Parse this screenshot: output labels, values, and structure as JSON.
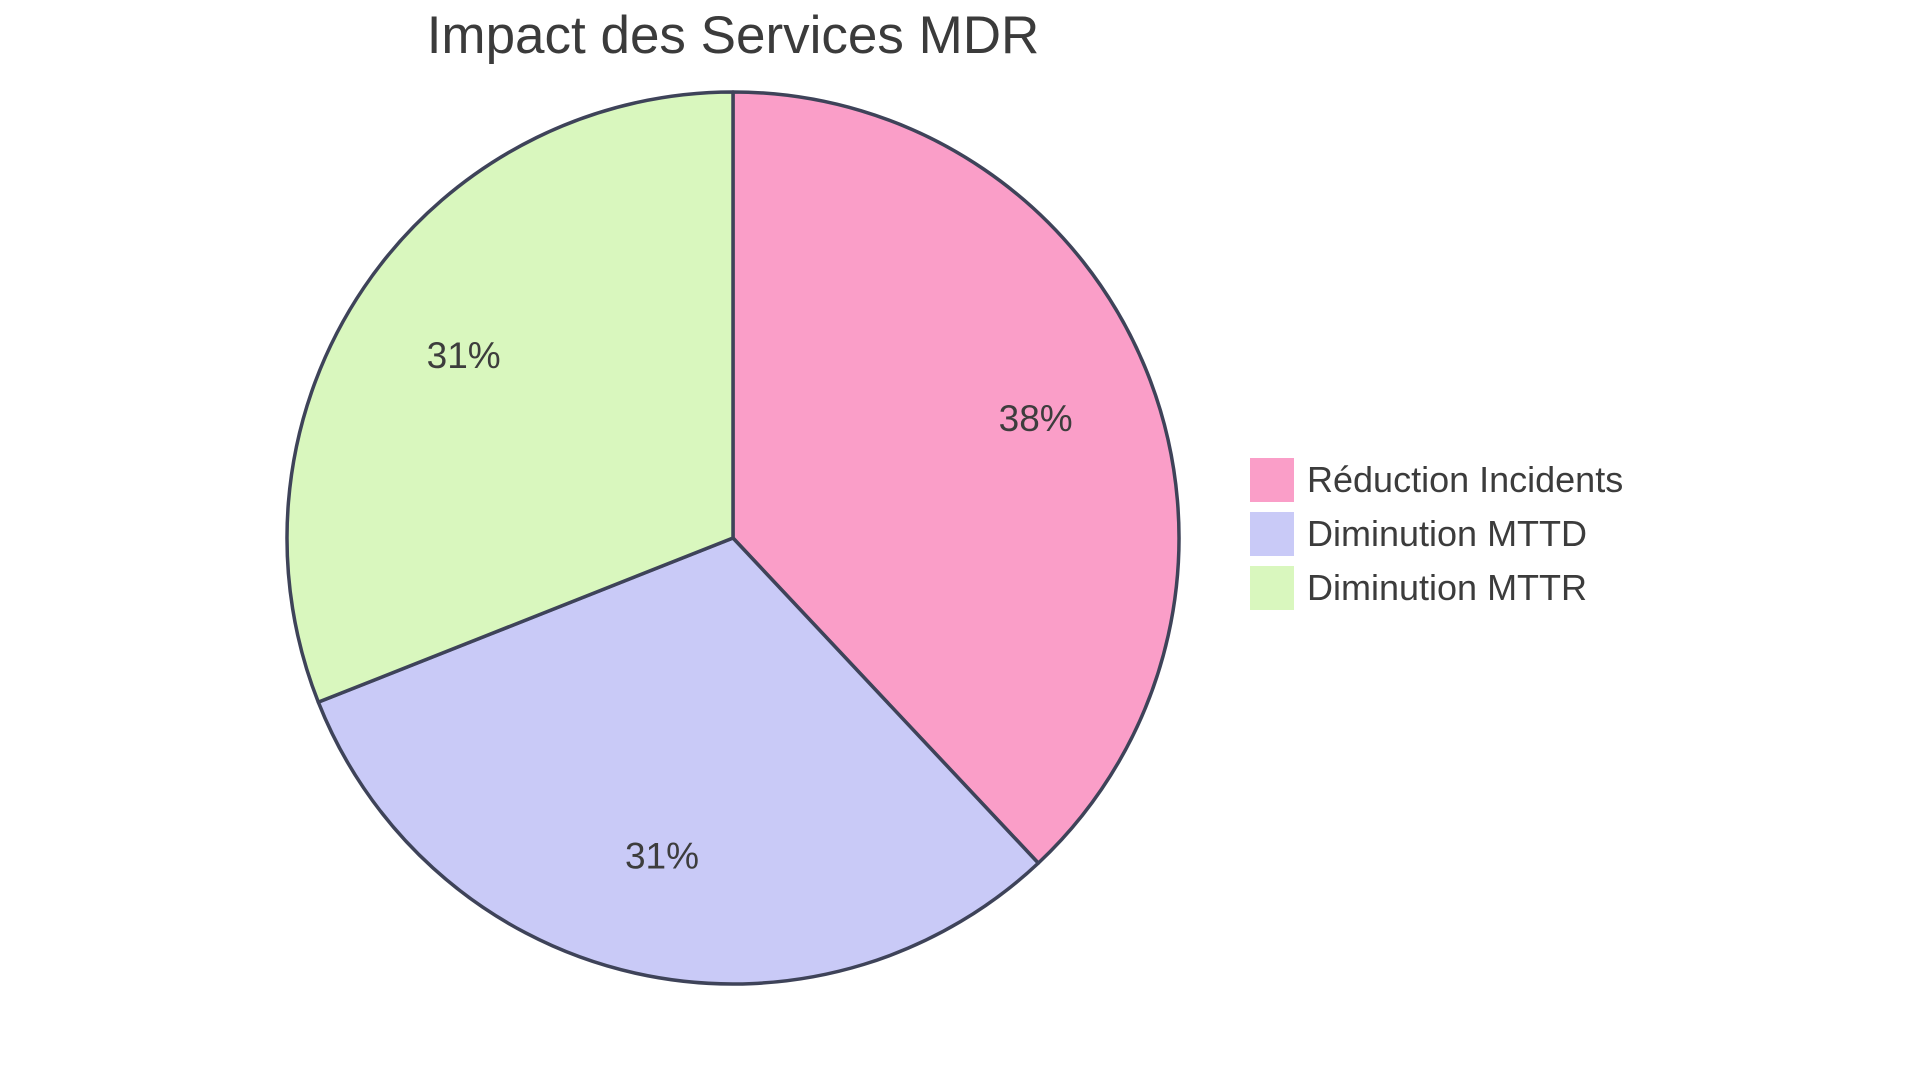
{
  "title": "Impact des Services MDR",
  "chart_data": {
    "type": "pie",
    "title": "Impact des Services MDR",
    "labels": [
      "Réduction Incidents",
      "Diminution MTTD",
      "Diminution MTTR"
    ],
    "values": [
      38,
      31,
      31
    ],
    "value_labels": [
      "38%",
      "31%",
      "31%"
    ],
    "colors": [
      "#FA9EC8",
      "#C9CAF7",
      "#D9F7BE"
    ],
    "slice_border_color": "#3E4359",
    "percent_label_color": "#3D3D3D",
    "start_angle_deg": 0,
    "direction": "clockwise",
    "legend_position": "right"
  },
  "legend": {
    "items": [
      {
        "label": "Réduction Incidents",
        "color": "#FA9EC8"
      },
      {
        "label": "Diminution MTTD",
        "color": "#C9CAF7"
      },
      {
        "label": "Diminution MTTR",
        "color": "#D9F7BE"
      }
    ]
  }
}
